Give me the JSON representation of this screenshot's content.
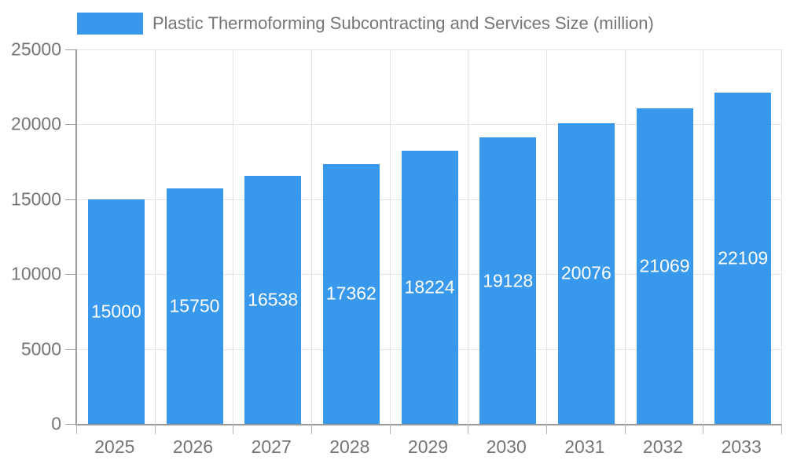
{
  "chart_data": {
    "type": "bar",
    "title": "Plastic Thermoforming Subcontracting and Services Size (million)",
    "legend": [
      "Plastic Thermoforming Subcontracting and Services Size (million)"
    ],
    "legend_position": "top",
    "categories": [
      "2025",
      "2026",
      "2027",
      "2028",
      "2029",
      "2030",
      "2031",
      "2032",
      "2033"
    ],
    "values": [
      15000,
      15750,
      16538,
      17362,
      18224,
      19128,
      20076,
      21069,
      22109
    ],
    "value_labels": [
      "15000",
      "15750",
      "16538",
      "17362",
      "18224",
      "19128",
      "20076",
      "21069",
      "22109"
    ],
    "xlabel": "",
    "ylabel": "",
    "ylim": [
      0,
      25000
    ],
    "yticks": [
      0,
      5000,
      10000,
      15000,
      20000,
      25000
    ],
    "grid": true,
    "colors": {
      "bar": "#3899ec",
      "value_label_text": "#ffffff"
    }
  }
}
